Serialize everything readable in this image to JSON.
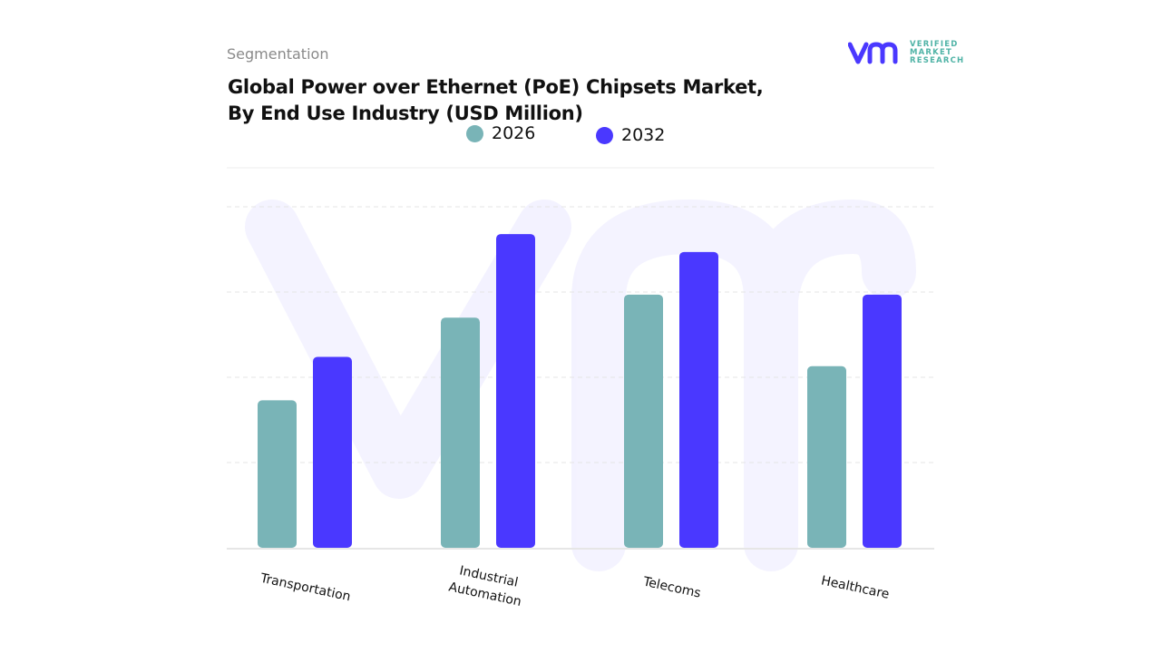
{
  "header": {
    "segment_label": "Segmentation",
    "title_line1": "Global Power over Ethernet (PoE) Chipsets Market,",
    "title_line2": "By End Use Industry (USD Million)"
  },
  "logo": {
    "line1": "VERIFIED",
    "line2": "MARKET",
    "line3": "RESEARCH",
    "mark": "vmr"
  },
  "chart_data": {
    "type": "bar",
    "title": "Global Power over Ethernet (PoE) Chipsets Market, By End Use Industry (USD Million)",
    "categories": [
      "Transportation",
      "Industrial Automation",
      "Telecoms",
      "Healthcare"
    ],
    "category_lines": [
      [
        "Transportation"
      ],
      [
        "Industrial",
        "Automation"
      ],
      [
        "Telecoms"
      ],
      [
        "Healthcare"
      ]
    ],
    "series": [
      {
        "name": "2026",
        "color": "#79b4b7",
        "values": [
          1.73,
          2.7,
          2.97,
          2.13
        ]
      },
      {
        "name": "2032",
        "color": "#4a38ff",
        "values": [
          2.24,
          3.68,
          3.47,
          2.97
        ]
      }
    ],
    "ylim": [
      0,
      4
    ],
    "y_tick_labels_shown": false,
    "grid": true,
    "legend_position": "top-center",
    "xlabel": "",
    "ylabel": ""
  }
}
